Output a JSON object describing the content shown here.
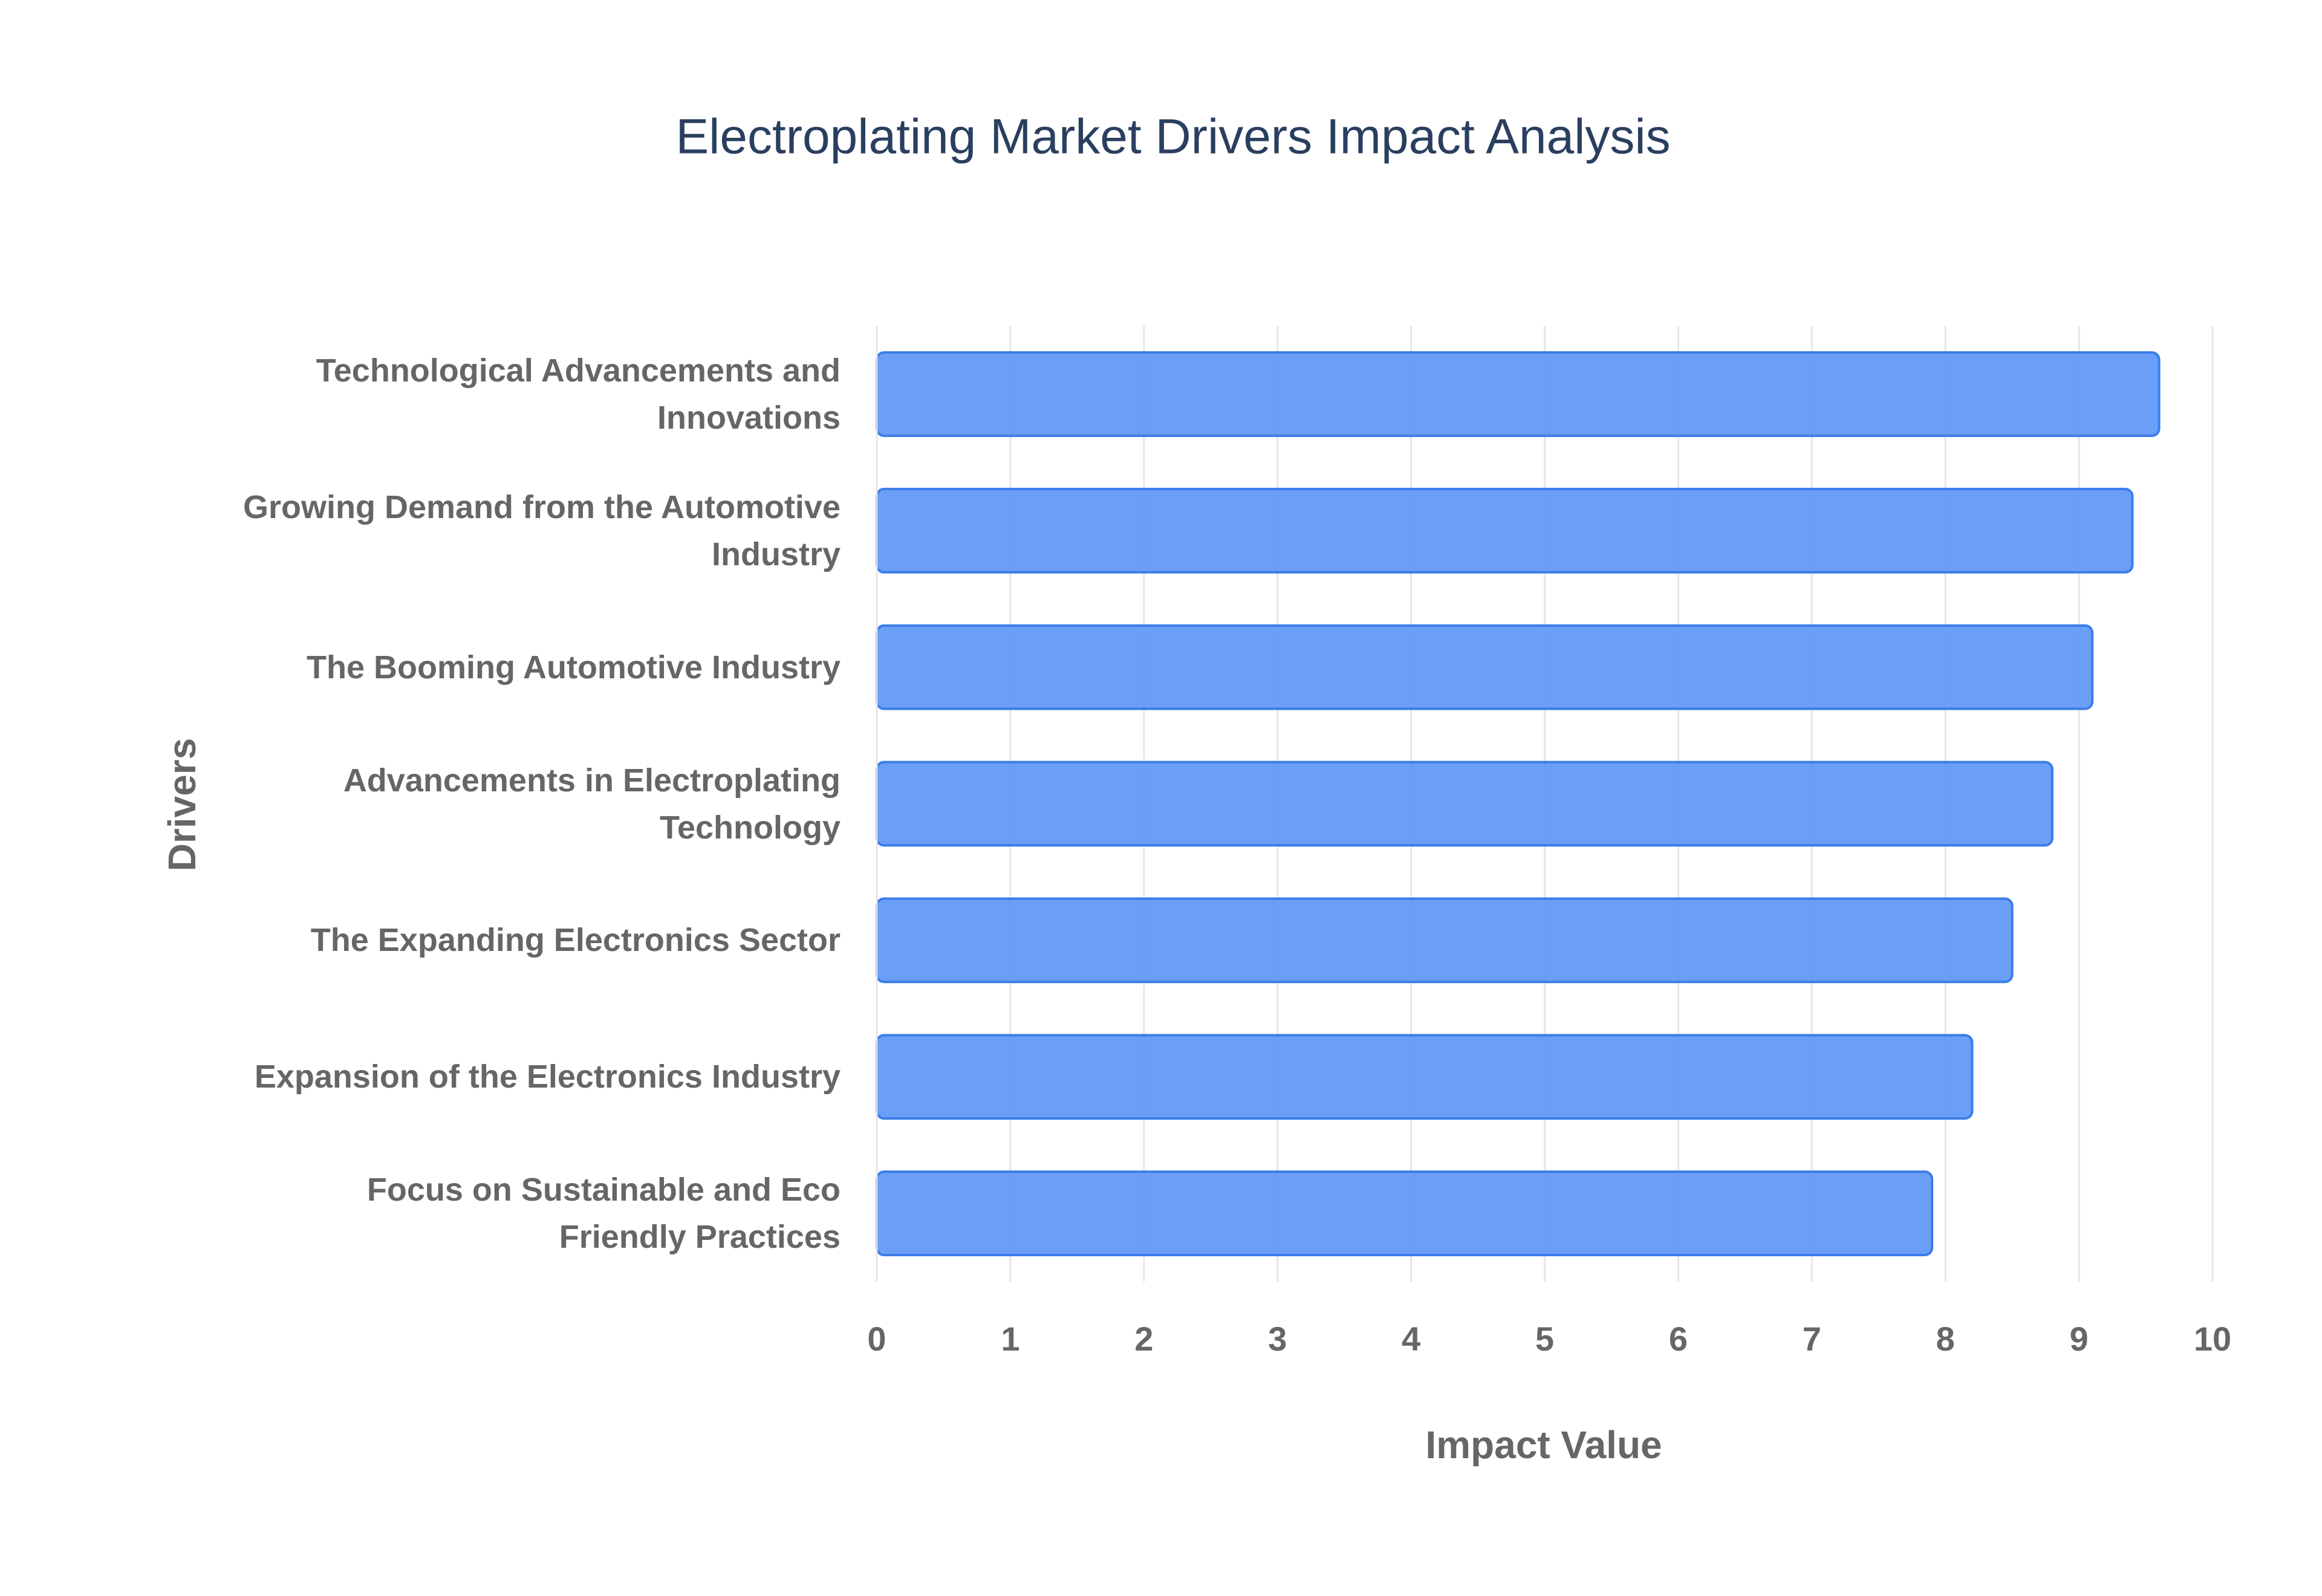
{
  "chart_data": {
    "type": "bar",
    "orientation": "horizontal",
    "title": "Electroplating Market Drivers Impact Analysis",
    "x_label": "Impact Value",
    "y_label": "Drivers",
    "categories": [
      "Technological Advancements and Innovations",
      "Growing Demand from the Automotive Industry",
      "The Booming Automotive Industry",
      "Advancements in Electroplating Technology",
      "The Expanding Electronics Sector",
      "Expansion of the Electronics Industry",
      "Focus on Sustainable and Eco Friendly Practices"
    ],
    "values": [
      9.6,
      9.4,
      9.1,
      8.8,
      8.5,
      8.2,
      7.9
    ],
    "color": "#6399f5",
    "xlim": [
      0,
      10
    ],
    "xticks": [
      0,
      1,
      2,
      3,
      4,
      5,
      6,
      7,
      8,
      9,
      10
    ],
    "grid": true
  }
}
